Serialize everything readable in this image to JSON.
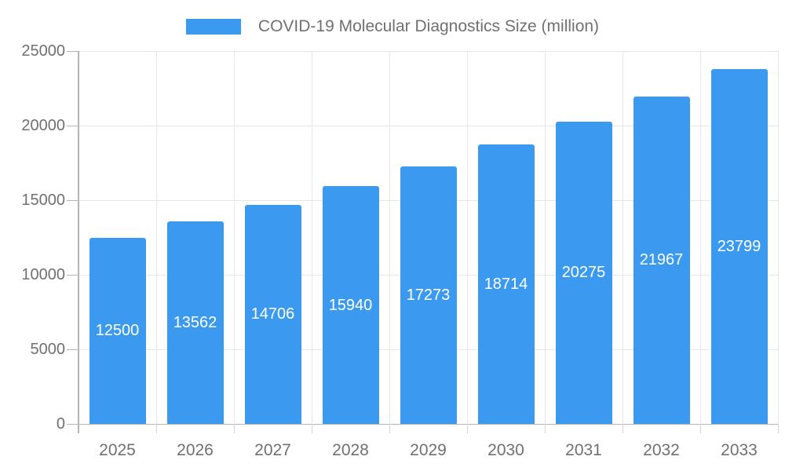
{
  "chart_data": {
    "type": "bar",
    "title": "COVID-19 Molecular Diagnostics Size (million)",
    "categories": [
      "2025",
      "2026",
      "2027",
      "2028",
      "2029",
      "2030",
      "2031",
      "2032",
      "2033"
    ],
    "values": [
      12500,
      13562,
      14706,
      15940,
      17273,
      18714,
      20275,
      21967,
      23799
    ],
    "xlabel": "",
    "ylabel": "",
    "ylim": [
      0,
      25000
    ],
    "yticks": [
      0,
      5000,
      10000,
      15000,
      20000,
      25000
    ],
    "grid": true,
    "legend_position": "top-center",
    "value_labels": "inside-center"
  },
  "colors": {
    "bar": "#3B9AEF",
    "grid": "#E6E6E6",
    "axis": "#B5B5B5",
    "minor_tick": "#D6D6D6",
    "label_text": "#707070",
    "value_label_text": "#FFFFFF",
    "background": "#FFFFFF"
  }
}
